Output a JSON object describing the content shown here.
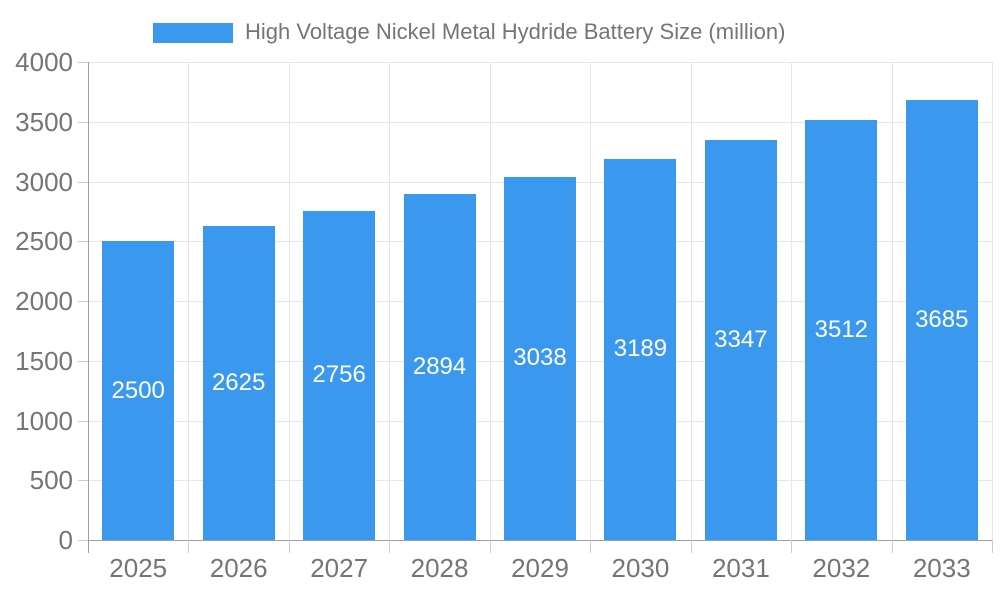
{
  "chart_data": {
    "type": "bar",
    "title": "High Voltage Nickel Metal Hydride Battery Size (million)",
    "categories": [
      "2025",
      "2026",
      "2027",
      "2028",
      "2029",
      "2030",
      "2031",
      "2032",
      "2033"
    ],
    "values": [
      2500,
      2625,
      2756,
      2894,
      3038,
      3189,
      3347,
      3512,
      3685
    ],
    "value_labels": [
      "2500",
      "2625",
      "2756",
      "2894",
      "3038",
      "3189",
      "3347",
      "3512",
      "3685"
    ],
    "xlabel": "",
    "ylabel": "",
    "ylim": [
      0,
      4000
    ],
    "yticks": [
      0,
      500,
      1000,
      1500,
      2000,
      2500,
      3000,
      3500,
      4000
    ],
    "grid": true,
    "legend_position": "top",
    "bar_labels_inside": true
  },
  "colors": {
    "bar": "#3a99ee",
    "bar_label": "#ffffff",
    "axis_text": "#757575",
    "title_text": "#757575",
    "gridline": "#e6e6e6",
    "axis_line": "#9e9e9e",
    "tick": "#cccccc",
    "background": "#ffffff"
  }
}
